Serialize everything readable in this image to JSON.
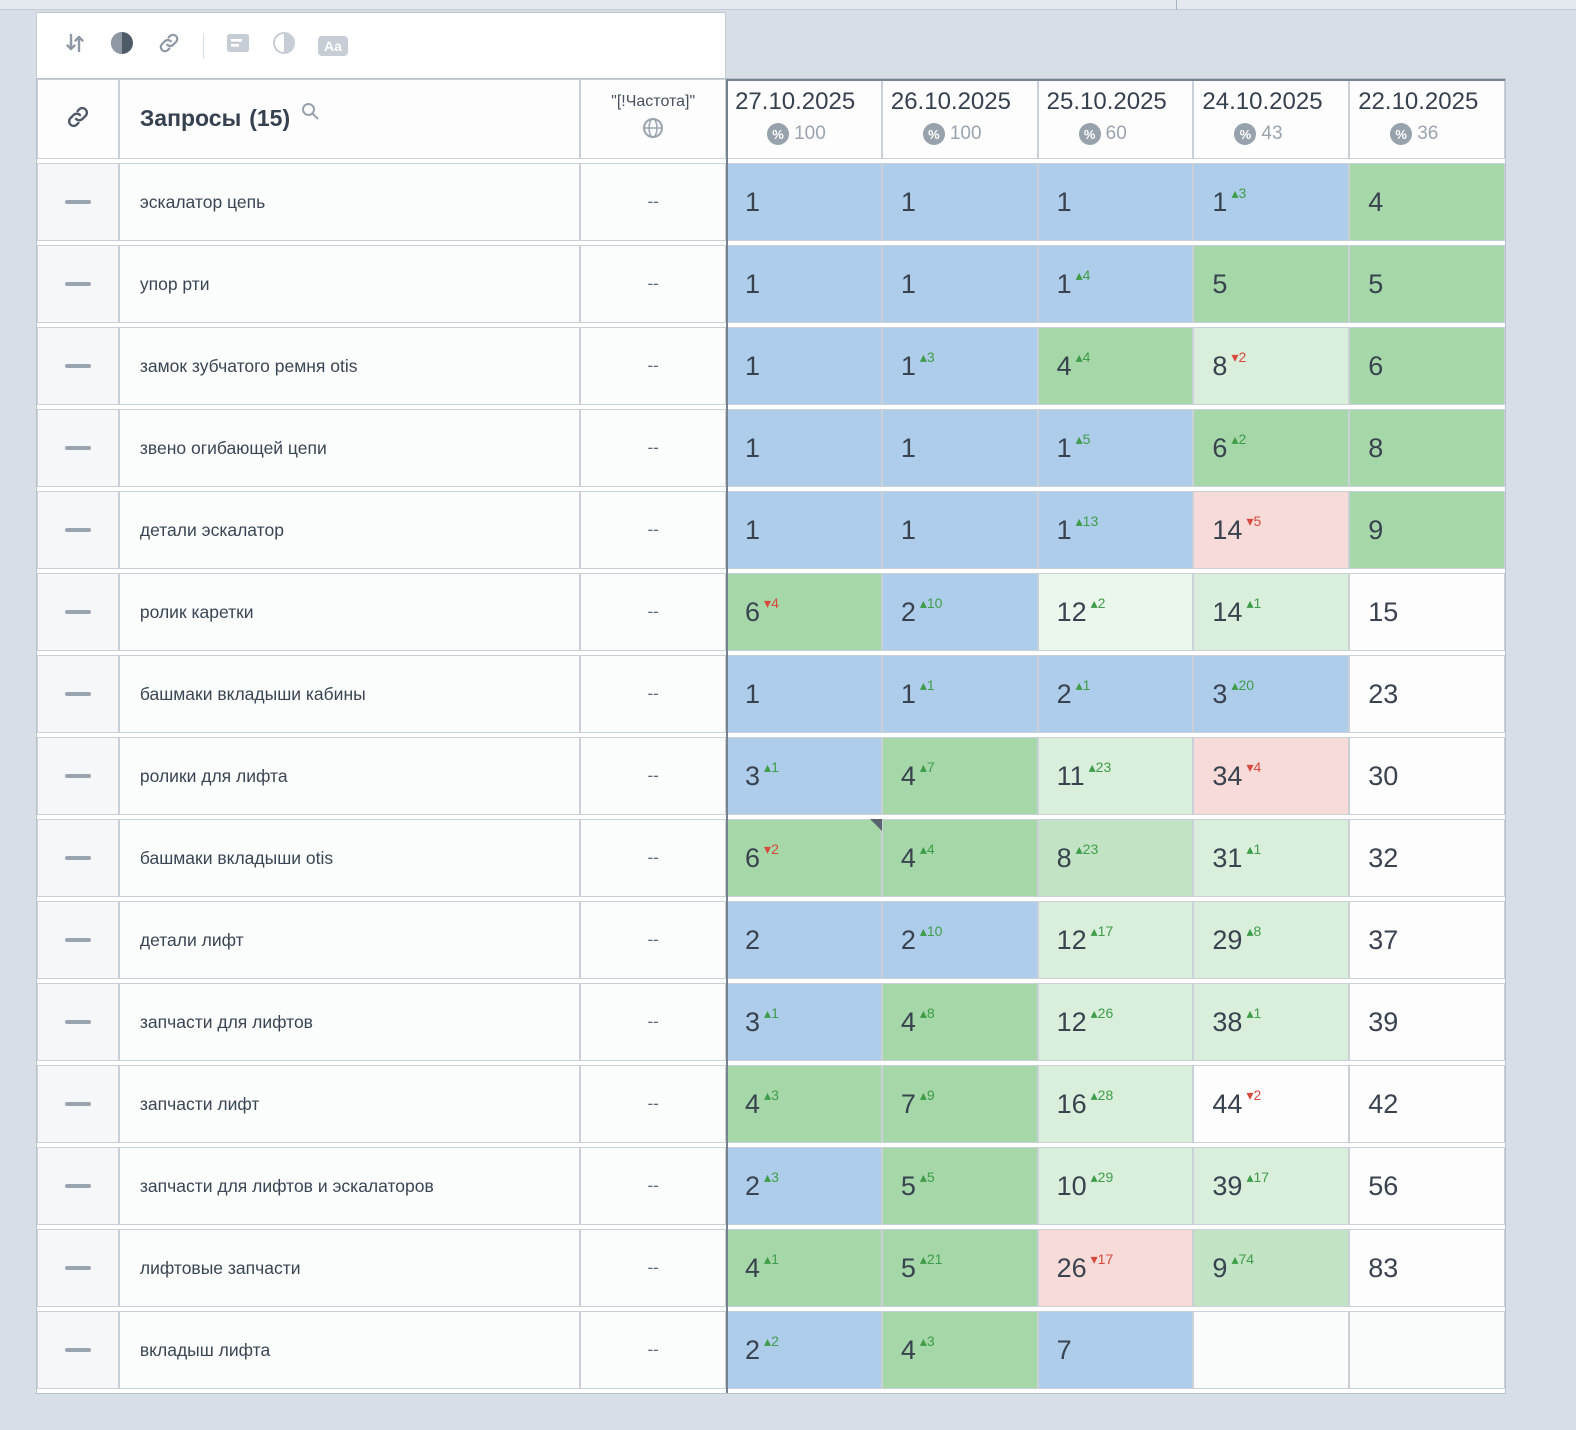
{
  "toolbar": {
    "icons": [
      "sort-icon",
      "view-toggle-icon",
      "link-icon",
      "card-icon",
      "contrast-icon",
      "text-case-icon"
    ],
    "text_case_label": "Aa"
  },
  "header": {
    "queries_label": "Запросы",
    "queries_count": "(15)",
    "frequency_label": "\"[!Частота]\"",
    "dates": [
      {
        "date": "27.10.2025",
        "coverage": "100"
      },
      {
        "date": "26.10.2025",
        "coverage": "100"
      },
      {
        "date": "25.10.2025",
        "coverage": "60"
      },
      {
        "date": "24.10.2025",
        "coverage": "43"
      },
      {
        "date": "22.10.2025",
        "coverage": "36"
      }
    ]
  },
  "colors": {
    "blue": "#aecdea",
    "green": "#a5d7a8",
    "green2": "#c2e4c4",
    "lightgreen": "#d9eedb",
    "palegreen": "#ebf6ec",
    "pink": "#f7dbd8",
    "white": "#fdfdfe",
    "empty": "#fafbfb"
  },
  "rows": [
    {
      "query": "эскалатор цепь",
      "frequency": "--",
      "cells": [
        {
          "pos": "1",
          "bg": "blue"
        },
        {
          "pos": "1",
          "bg": "blue"
        },
        {
          "pos": "1",
          "bg": "blue"
        },
        {
          "pos": "1",
          "delta": "3",
          "dir": "up",
          "bg": "blue"
        },
        {
          "pos": "4",
          "bg": "green"
        }
      ]
    },
    {
      "query": "упор рти",
      "frequency": "--",
      "cells": [
        {
          "pos": "1",
          "bg": "blue"
        },
        {
          "pos": "1",
          "bg": "blue"
        },
        {
          "pos": "1",
          "delta": "4",
          "dir": "up",
          "bg": "blue"
        },
        {
          "pos": "5",
          "bg": "green"
        },
        {
          "pos": "5",
          "bg": "green"
        }
      ]
    },
    {
      "query": "замок зубчатого ремня otis",
      "frequency": "--",
      "cells": [
        {
          "pos": "1",
          "bg": "blue"
        },
        {
          "pos": "1",
          "delta": "3",
          "dir": "up",
          "bg": "blue"
        },
        {
          "pos": "4",
          "delta": "4",
          "dir": "up",
          "bg": "green"
        },
        {
          "pos": "8",
          "delta": "2",
          "dir": "down",
          "bg": "lightgreen"
        },
        {
          "pos": "6",
          "bg": "green"
        }
      ]
    },
    {
      "query": "звено огибающей цепи",
      "frequency": "--",
      "cells": [
        {
          "pos": "1",
          "bg": "blue"
        },
        {
          "pos": "1",
          "bg": "blue"
        },
        {
          "pos": "1",
          "delta": "5",
          "dir": "up",
          "bg": "blue"
        },
        {
          "pos": "6",
          "delta": "2",
          "dir": "up",
          "bg": "green"
        },
        {
          "pos": "8",
          "bg": "green"
        }
      ]
    },
    {
      "query": "детали эскалатор",
      "frequency": "--",
      "cells": [
        {
          "pos": "1",
          "bg": "blue"
        },
        {
          "pos": "1",
          "bg": "blue"
        },
        {
          "pos": "1",
          "delta": "13",
          "dir": "up",
          "bg": "blue"
        },
        {
          "pos": "14",
          "delta": "5",
          "dir": "down",
          "bg": "pink"
        },
        {
          "pos": "9",
          "bg": "green"
        }
      ]
    },
    {
      "query": "ролик каретки",
      "frequency": "--",
      "cells": [
        {
          "pos": "6",
          "delta": "4",
          "dir": "down",
          "bg": "green"
        },
        {
          "pos": "2",
          "delta": "10",
          "dir": "up",
          "bg": "blue"
        },
        {
          "pos": "12",
          "delta": "2",
          "dir": "up",
          "bg": "palegreen"
        },
        {
          "pos": "14",
          "delta": "1",
          "dir": "up",
          "bg": "lightgreen"
        },
        {
          "pos": "15",
          "bg": "white"
        }
      ]
    },
    {
      "query": "башмаки вкладыши кабины",
      "frequency": "--",
      "cells": [
        {
          "pos": "1",
          "bg": "blue"
        },
        {
          "pos": "1",
          "delta": "1",
          "dir": "up",
          "bg": "blue"
        },
        {
          "pos": "2",
          "delta": "1",
          "dir": "up",
          "bg": "blue"
        },
        {
          "pos": "3",
          "delta": "20",
          "dir": "up",
          "bg": "blue"
        },
        {
          "pos": "23",
          "bg": "white"
        }
      ]
    },
    {
      "query": "ролики для лифта",
      "frequency": "--",
      "cells": [
        {
          "pos": "3",
          "delta": "1",
          "dir": "up",
          "bg": "blue"
        },
        {
          "pos": "4",
          "delta": "7",
          "dir": "up",
          "bg": "green"
        },
        {
          "pos": "11",
          "delta": "23",
          "dir": "up",
          "bg": "lightgreen"
        },
        {
          "pos": "34",
          "delta": "4",
          "dir": "down",
          "bg": "pink"
        },
        {
          "pos": "30",
          "bg": "white"
        }
      ]
    },
    {
      "query": "башмаки вкладыши otis",
      "frequency": "--",
      "cells": [
        {
          "pos": "6",
          "delta": "2",
          "dir": "down",
          "bg": "green",
          "marker": true
        },
        {
          "pos": "4",
          "delta": "4",
          "dir": "up",
          "bg": "green"
        },
        {
          "pos": "8",
          "delta": "23",
          "dir": "up",
          "bg": "green2"
        },
        {
          "pos": "31",
          "delta": "1",
          "dir": "up",
          "bg": "lightgreen"
        },
        {
          "pos": "32",
          "bg": "white"
        }
      ]
    },
    {
      "query": "детали лифт",
      "frequency": "--",
      "cells": [
        {
          "pos": "2",
          "bg": "blue"
        },
        {
          "pos": "2",
          "delta": "10",
          "dir": "up",
          "bg": "blue"
        },
        {
          "pos": "12",
          "delta": "17",
          "dir": "up",
          "bg": "lightgreen"
        },
        {
          "pos": "29",
          "delta": "8",
          "dir": "up",
          "bg": "lightgreen"
        },
        {
          "pos": "37",
          "bg": "white"
        }
      ]
    },
    {
      "query": "запчасти для лифтов",
      "frequency": "--",
      "cells": [
        {
          "pos": "3",
          "delta": "1",
          "dir": "up",
          "bg": "blue"
        },
        {
          "pos": "4",
          "delta": "8",
          "dir": "up",
          "bg": "green"
        },
        {
          "pos": "12",
          "delta": "26",
          "dir": "up",
          "bg": "lightgreen"
        },
        {
          "pos": "38",
          "delta": "1",
          "dir": "up",
          "bg": "lightgreen"
        },
        {
          "pos": "39",
          "bg": "white"
        }
      ]
    },
    {
      "query": "запчасти лифт",
      "frequency": "--",
      "cells": [
        {
          "pos": "4",
          "delta": "3",
          "dir": "up",
          "bg": "green"
        },
        {
          "pos": "7",
          "delta": "9",
          "dir": "up",
          "bg": "green"
        },
        {
          "pos": "16",
          "delta": "28",
          "dir": "up",
          "bg": "lightgreen"
        },
        {
          "pos": "44",
          "delta": "2",
          "dir": "down",
          "bg": "white"
        },
        {
          "pos": "42",
          "bg": "white"
        }
      ]
    },
    {
      "query": "запчасти для лифтов и эскалаторов",
      "frequency": "--",
      "cells": [
        {
          "pos": "2",
          "delta": "3",
          "dir": "up",
          "bg": "blue"
        },
        {
          "pos": "5",
          "delta": "5",
          "dir": "up",
          "bg": "green"
        },
        {
          "pos": "10",
          "delta": "29",
          "dir": "up",
          "bg": "lightgreen"
        },
        {
          "pos": "39",
          "delta": "17",
          "dir": "up",
          "bg": "lightgreen"
        },
        {
          "pos": "56",
          "bg": "white"
        }
      ]
    },
    {
      "query": "лифтовые запчасти",
      "frequency": "--",
      "cells": [
        {
          "pos": "4",
          "delta": "1",
          "dir": "up",
          "bg": "green"
        },
        {
          "pos": "5",
          "delta": "21",
          "dir": "up",
          "bg": "green"
        },
        {
          "pos": "26",
          "delta": "17",
          "dir": "down",
          "bg": "pink"
        },
        {
          "pos": "9",
          "delta": "74",
          "dir": "up",
          "bg": "green2"
        },
        {
          "pos": "83",
          "bg": "white"
        }
      ]
    },
    {
      "query": "вкладыш лифта",
      "frequency": "--",
      "cells": [
        {
          "pos": "2",
          "delta": "2",
          "dir": "up",
          "bg": "blue"
        },
        {
          "pos": "4",
          "delta": "3",
          "dir": "up",
          "bg": "green"
        },
        {
          "pos": "7",
          "bg": "blue"
        },
        {
          "pos": "",
          "bg": "empty"
        },
        {
          "pos": "",
          "bg": "empty"
        }
      ]
    }
  ]
}
